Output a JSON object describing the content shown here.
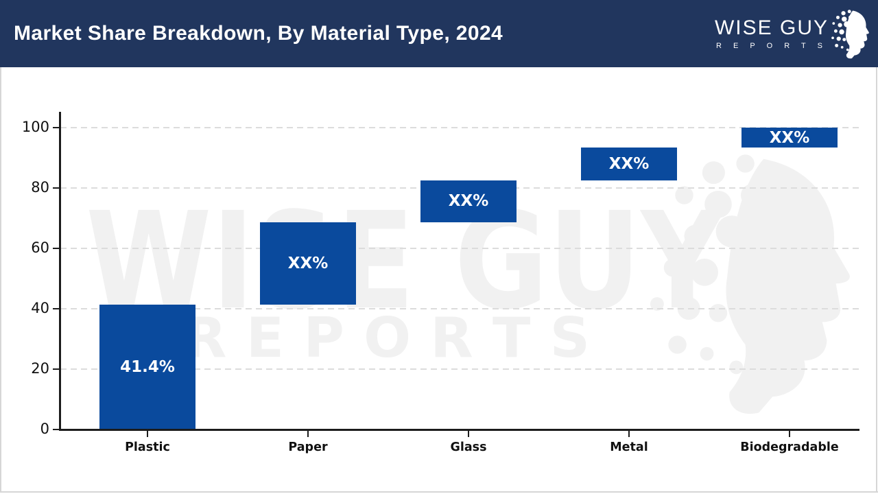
{
  "header": {
    "title": "Market Share Breakdown, By Material Type, 2024",
    "bg_color": "#21365e",
    "logo": {
      "wordmark": "WISE GUY",
      "subtext": "R E P O R T S",
      "icon": "dotted-face-profile-icon"
    }
  },
  "watermark": {
    "line1": "WISE GUY",
    "line2": "R E P O R T S",
    "color": "#f1f1f1"
  },
  "chart_data": {
    "type": "bar",
    "subtype": "waterfall",
    "title": "Market Share Breakdown, By Material Type, 2024",
    "xlabel": "",
    "ylabel": "",
    "categories": [
      "Plastic",
      "Paper",
      "Glass",
      "Metal",
      "Biodegradable"
    ],
    "segments": [
      {
        "category": "Plastic",
        "start": 0,
        "end": 41.4
      },
      {
        "category": "Paper",
        "start": 41.4,
        "end": 68.7
      },
      {
        "category": "Glass",
        "start": 68.7,
        "end": 82.5
      },
      {
        "category": "Metal",
        "start": 82.5,
        "end": 93.4
      },
      {
        "category": "Biodegradable",
        "start": 93.4,
        "end": 100
      }
    ],
    "bar_labels": [
      "41.4%",
      "XX%",
      "XX%",
      "XX%",
      "XX%"
    ],
    "yticks": [
      0,
      20,
      40,
      60,
      80,
      100
    ],
    "ytick_labels": [
      "0",
      "20",
      "40",
      "60",
      "80",
      "100"
    ],
    "ylim": [
      0,
      105
    ],
    "grid": "horizontal-dashed",
    "legend": "none",
    "bar_color": "#0a4a9d",
    "bar_label_color": "#ffffff",
    "axis_color": "#1c1c1c",
    "gridline_color": "#dcdcdc"
  }
}
